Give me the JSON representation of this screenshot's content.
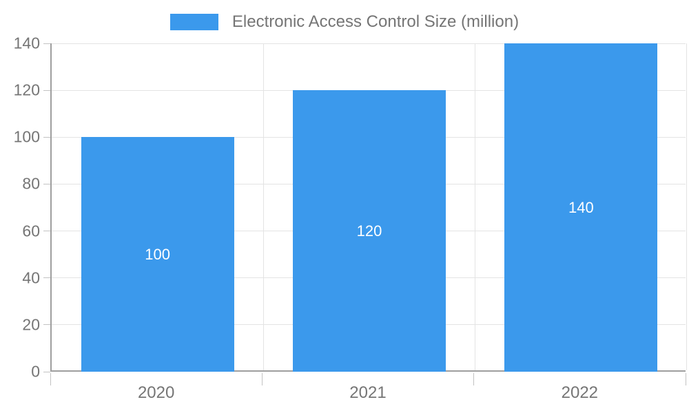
{
  "chart_data": {
    "type": "bar",
    "title": "Electronic Access Control Size (million)",
    "categories": [
      "2020",
      "2021",
      "2022"
    ],
    "series": [
      {
        "name": "Electronic Access Control Size (million)",
        "values": [
          100,
          120,
          140
        ]
      }
    ],
    "data_labels": [
      "100",
      "120",
      "140"
    ],
    "yticks": [
      0,
      20,
      40,
      60,
      80,
      100,
      120,
      140
    ],
    "ylim": [
      0,
      140
    ],
    "xlabel": "",
    "ylabel": "",
    "grid": true,
    "legend_position": "top-center",
    "colors": {
      "bar": "#3b99ec",
      "bar_label_text": "#ffffff",
      "axis_line": "#9e9e9e",
      "gridline": "#e3e3e3",
      "tick": "#c2c2c2",
      "label_text": "#757575",
      "background": "#ffffff"
    }
  }
}
